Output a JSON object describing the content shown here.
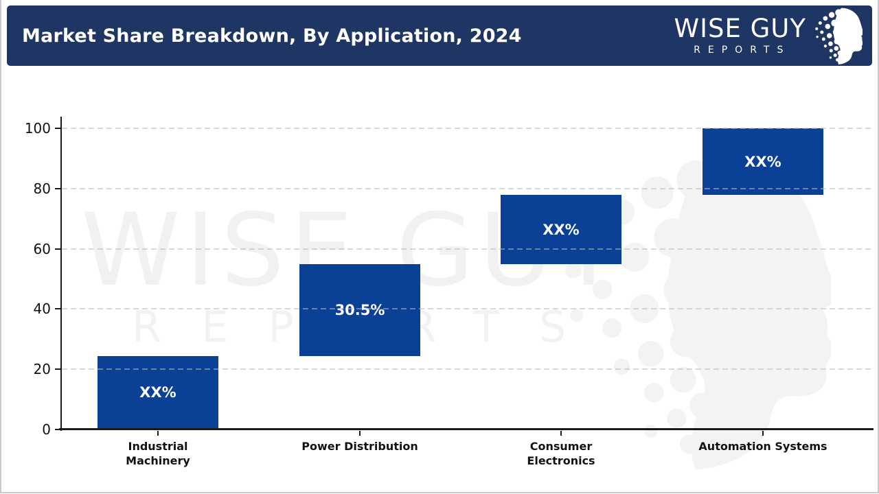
{
  "header": {
    "title": "Market Share Breakdown, By Application, 2024",
    "logo": {
      "line1": "WISE GUY",
      "line2": "REPORTS"
    }
  },
  "watermark": {
    "line1": "WISE GUY",
    "line2": "REPORTS"
  },
  "colors": {
    "header_bg": "#1f3564",
    "bar": "#0a4197",
    "axis": "#1a1a1a",
    "grid": "#dcdcdc",
    "bar_label_text": "#ffffff"
  },
  "chart_data": {
    "type": "bar",
    "subtype": "waterfall",
    "title": "Market Share Breakdown, By Application, 2024",
    "xlabel": "",
    "ylabel": "",
    "ylim": [
      0,
      100
    ],
    "y_ticks": [
      0,
      20,
      40,
      60,
      80,
      100
    ],
    "grid": "horizontal dashed",
    "categories": [
      "Industrial Machinery",
      "Power Distribution",
      "Consumer Electronics",
      "Automation Systems"
    ],
    "segments": [
      {
        "category": "Industrial Machinery",
        "category_lines": [
          "Industrial",
          "Machinery"
        ],
        "start": 0,
        "end": 24.4,
        "value_label": "XX%"
      },
      {
        "category": "Power Distribution",
        "category_lines": [
          "Power Distribution"
        ],
        "start": 24.4,
        "end": 54.9,
        "value_label": "30.5%"
      },
      {
        "category": "Consumer Electronics",
        "category_lines": [
          "Consumer",
          "Electronics"
        ],
        "start": 54.9,
        "end": 77.9,
        "value_label": "XX%"
      },
      {
        "category": "Automation Systems",
        "category_lines": [
          "Automation Systems"
        ],
        "start": 77.9,
        "end": 100,
        "value_label": "XX%"
      }
    ]
  }
}
